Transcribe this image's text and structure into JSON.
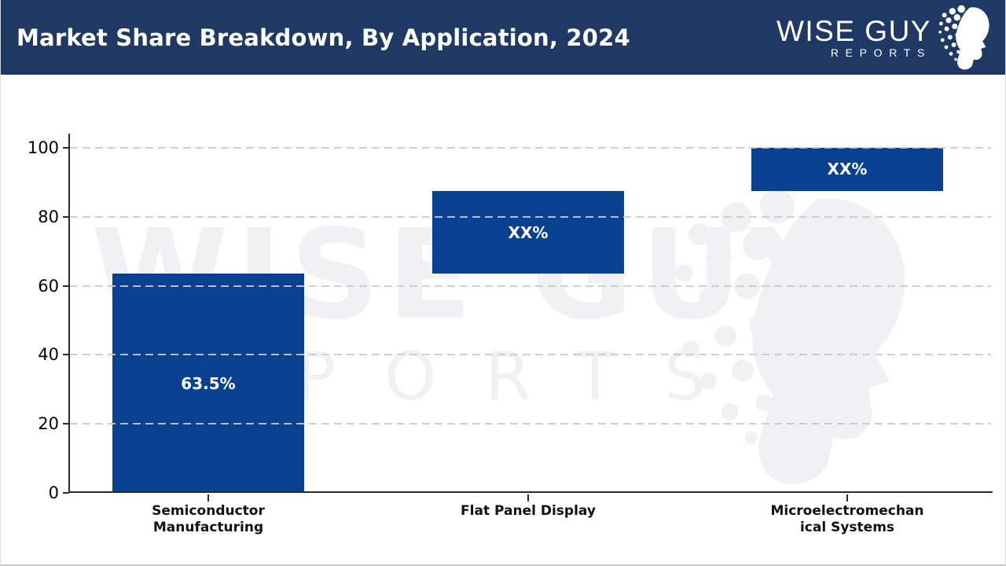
{
  "header": {
    "title": "Market Share Breakdown, By Application, 2024",
    "logo": {
      "line1": "WISE GUY",
      "line2": "REPORTS"
    }
  },
  "watermark": {
    "line1": "WISE GUY",
    "line2": "REPORTS"
  },
  "chart_data": {
    "type": "bar",
    "subtype": "cumulative-waterfall",
    "title": "Market Share Breakdown, By Application, 2024",
    "xlabel": "",
    "ylabel": "",
    "ylim": [
      0,
      105
    ],
    "yticks": [
      0,
      20,
      40,
      60,
      80,
      100
    ],
    "grid": "horizontal-dashed",
    "legend": "none",
    "bar_color": "#07418f",
    "categories": [
      "Semiconductor\nManufacturing",
      "Flat Panel Display",
      "Microelectromechan\nical Systems"
    ],
    "bars": [
      {
        "category": "Semiconductor Manufacturing",
        "label": "63.5%",
        "start": 0,
        "end": 63.5
      },
      {
        "category": "Flat Panel Display",
        "label": "XX%",
        "start": 63.5,
        "end": 87.5
      },
      {
        "category": "Microelectromechanical Systems",
        "label": "XX%",
        "start": 87.5,
        "end": 100
      }
    ]
  }
}
